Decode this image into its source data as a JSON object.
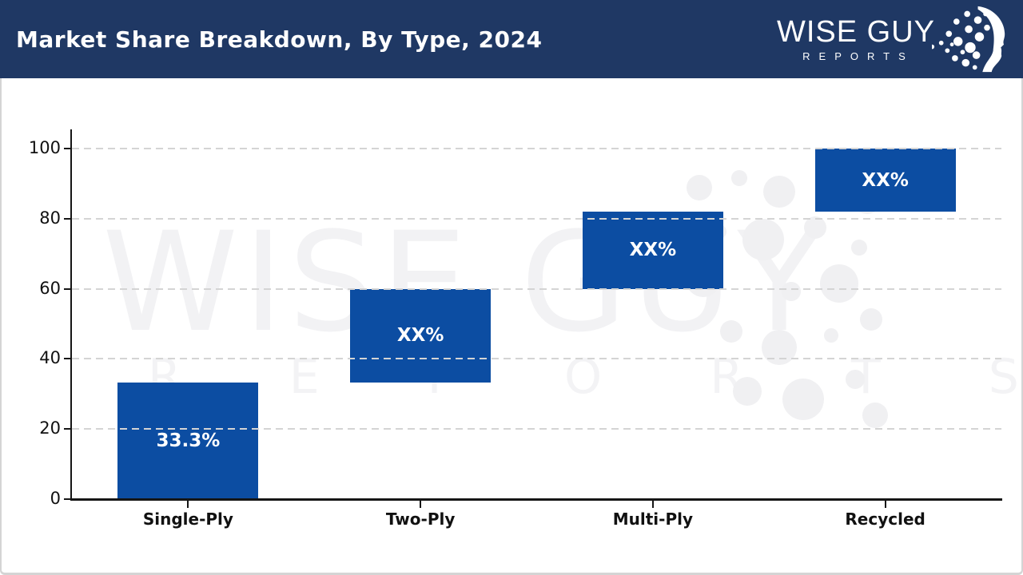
{
  "header": {
    "title": "Market Share Breakdown, By Type, 2024",
    "logo": {
      "line1": "WISE GUY",
      "line2": "REPORTS"
    }
  },
  "watermark": {
    "line1": "WISE GUY",
    "line2": "R E P O R T S"
  },
  "colors": {
    "header_bg": "#1f3864",
    "bar": "#0c4da2",
    "bar_label": "#ffffff",
    "gridline": "#d4d4d4",
    "axis": "#161616",
    "watermark": "#f2f2f4",
    "card_border": "#d4d4d4"
  },
  "chart_data": {
    "type": "bar",
    "subtype": "waterfall",
    "title": "Market Share Breakdown, By Type, 2024",
    "categories": [
      "Single-Ply",
      "Two-Ply",
      "Multi-Ply",
      "Recycled"
    ],
    "segments": [
      {
        "category": "Single-Ply",
        "start": 0,
        "end": 33.3,
        "label": "33.3%"
      },
      {
        "category": "Two-Ply",
        "start": 33.3,
        "end": 60,
        "label": "XX%"
      },
      {
        "category": "Multi-Ply",
        "start": 60,
        "end": 82,
        "label": "XX%"
      },
      {
        "category": "Recycled",
        "start": 82,
        "end": 100,
        "label": "XX%"
      }
    ],
    "yticks": [
      0,
      20,
      40,
      60,
      80,
      100
    ],
    "ylim": [
      0,
      108
    ],
    "xlabel": "",
    "ylabel": "",
    "grid": "dashed-horizontal-over-bars",
    "legend": "none"
  }
}
